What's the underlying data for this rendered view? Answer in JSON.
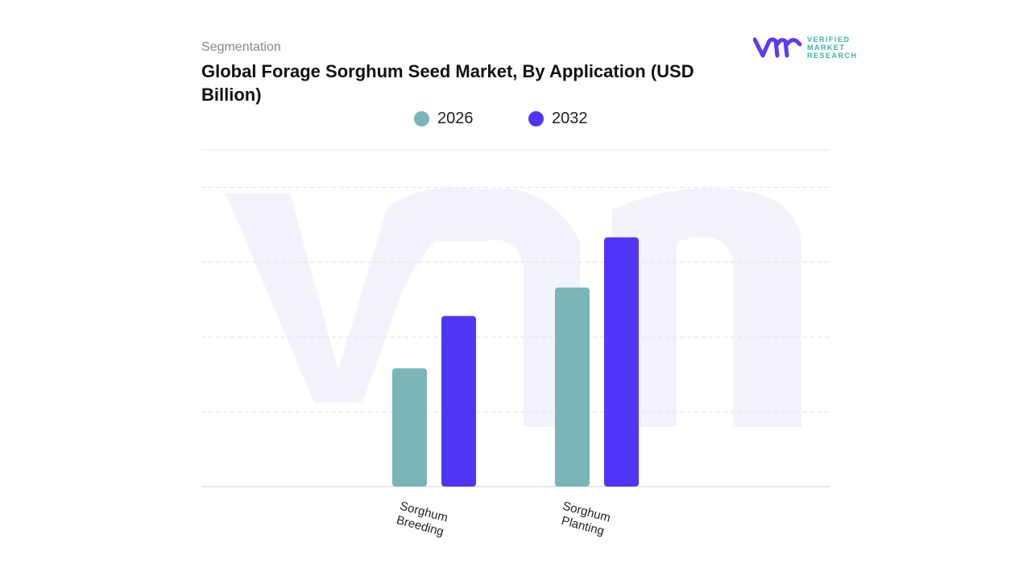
{
  "header": {
    "segment_label": "Segmentation",
    "title": "Global Forage Sorghum Seed Market, By Application (USD Billion)"
  },
  "logo": {
    "line1": "VERIFIED",
    "line2": "MARKET",
    "line3": "RESEARCH",
    "brand_color": "#5a3cf0",
    "text_color": "#3bb3a3"
  },
  "chart_data": {
    "type": "bar",
    "title": "Global Forage Sorghum Seed Market, By Application (USD Billion)",
    "categories": [
      "Sorghum Breeding",
      "Sorghum Planting"
    ],
    "category_lines": [
      [
        "Sorghum",
        "Breeding"
      ],
      [
        "Sorghum",
        "Planting"
      ]
    ],
    "series": [
      {
        "name": "2026",
        "color": "#7ab5b8",
        "values": [
          1.58,
          2.66
        ]
      },
      {
        "name": "2032",
        "color": "#4f36f5",
        "values": [
          2.28,
          3.33
        ]
      }
    ],
    "ylim": [
      0,
      4.5
    ],
    "grid": true,
    "legend": "top-center",
    "y_tick_labels_shown": false
  }
}
